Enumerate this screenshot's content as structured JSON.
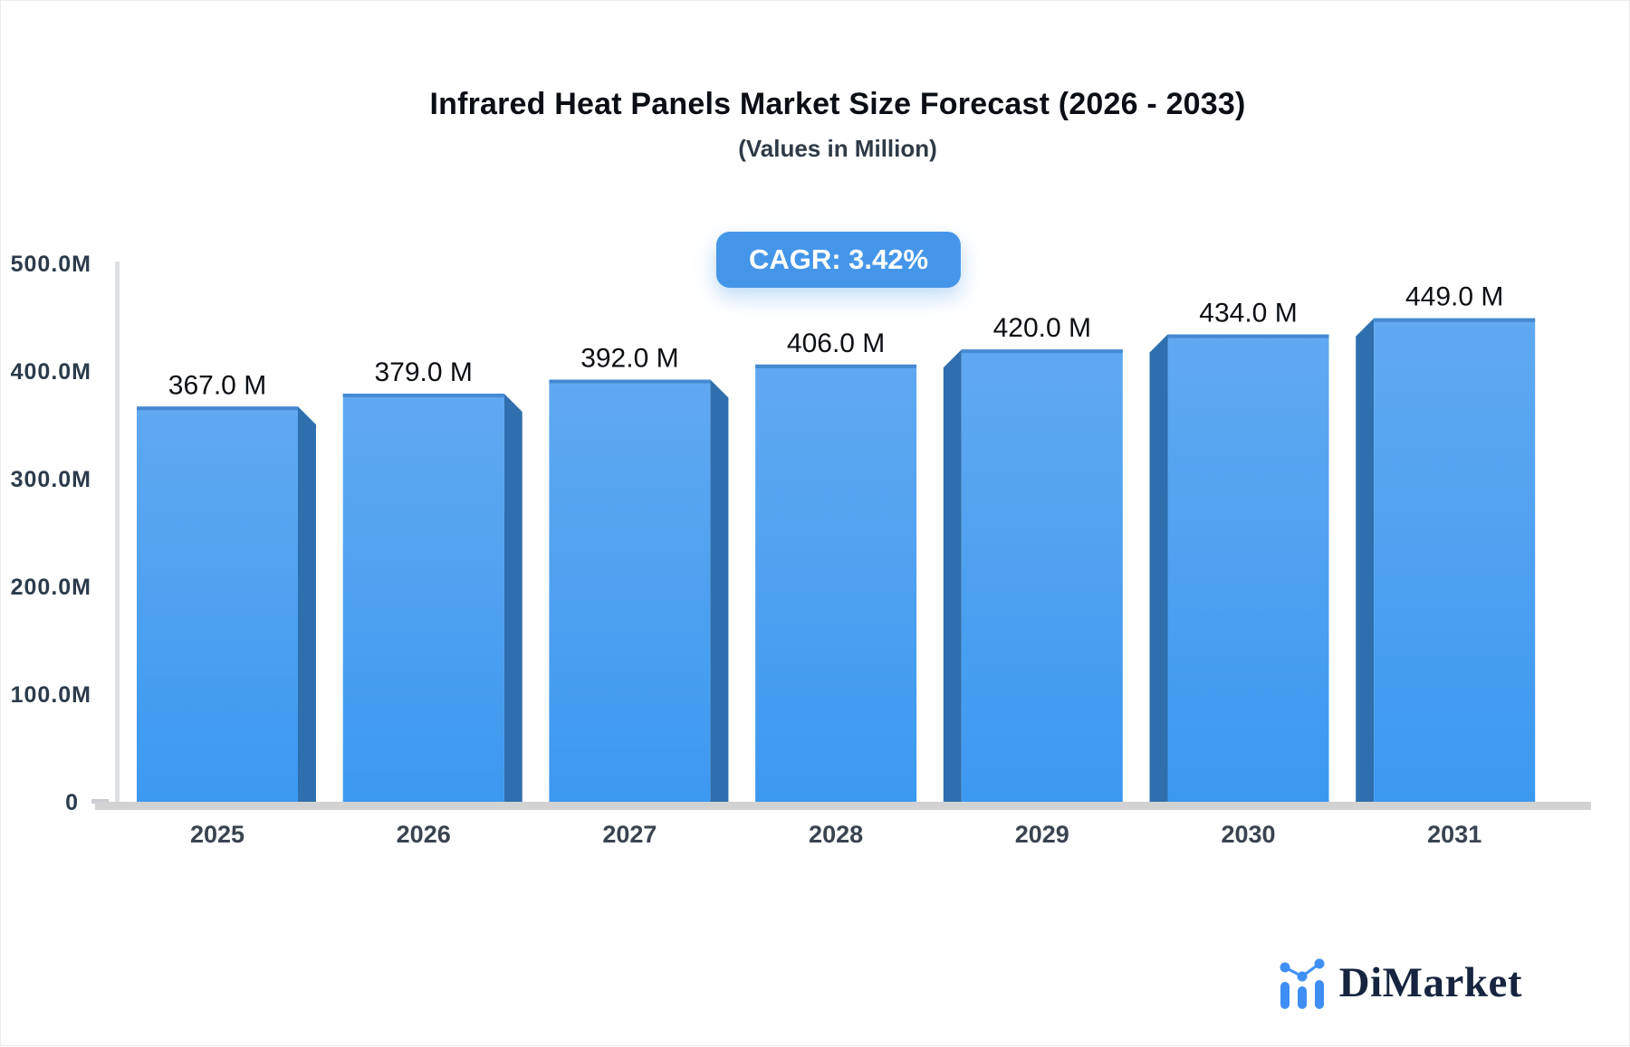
{
  "header": {
    "title": "Infrared Heat Panels Market Size Forecast (2026 - 2033)",
    "subtitle": "(Values in Million)",
    "cagr_label": "CAGR: 3.42%"
  },
  "footer": {
    "brand": "DiMarket",
    "brand_icon": "bar-chart-logo-icon"
  },
  "chart_data": {
    "type": "bar",
    "title": "Infrared Heat Panels Market Size Forecast (2026 - 2033)",
    "subtitle": "(Values in Million)",
    "unit": "Million",
    "cagr": "3.42%",
    "categories": [
      "2025",
      "2026",
      "2027",
      "2028",
      "2029",
      "2030",
      "2031"
    ],
    "values": [
      367.0,
      379.0,
      392.0,
      406.0,
      420.0,
      434.0,
      449.0
    ],
    "bar_labels": [
      "367.0 M",
      "379.0 M",
      "392.0 M",
      "406.0 M",
      "420.0 M",
      "434.0 M",
      "449.0 M"
    ],
    "ylim": [
      0,
      500
    ],
    "yticks": [
      {
        "value": 0,
        "label": "0"
      },
      {
        "value": 100,
        "label": "100.0M"
      },
      {
        "value": 200,
        "label": "200.0M"
      },
      {
        "value": 300,
        "label": "300.0M"
      },
      {
        "value": 400,
        "label": "400.0M"
      },
      {
        "value": 500,
        "label": "500.0M"
      }
    ],
    "grid": false,
    "legend": false,
    "style": "3d-extruded-bars",
    "colors": {
      "bar_face_top": "#60a9f1",
      "bar_face_bottom": "#3c99f0",
      "bar_top_edge": "#4285cd",
      "bar_side": "#2f6fad",
      "axis_line": "#dedfe2",
      "baseline": "#d2d2d2",
      "badge_background": "#4596e9",
      "badge_text": "#ffffff",
      "value_label": "#0c0f13",
      "tick_label": "#2c3b4c",
      "category_label": "#3a4350",
      "logo_blue": "#3f8ef5",
      "logo_navy": "#16243f"
    }
  }
}
